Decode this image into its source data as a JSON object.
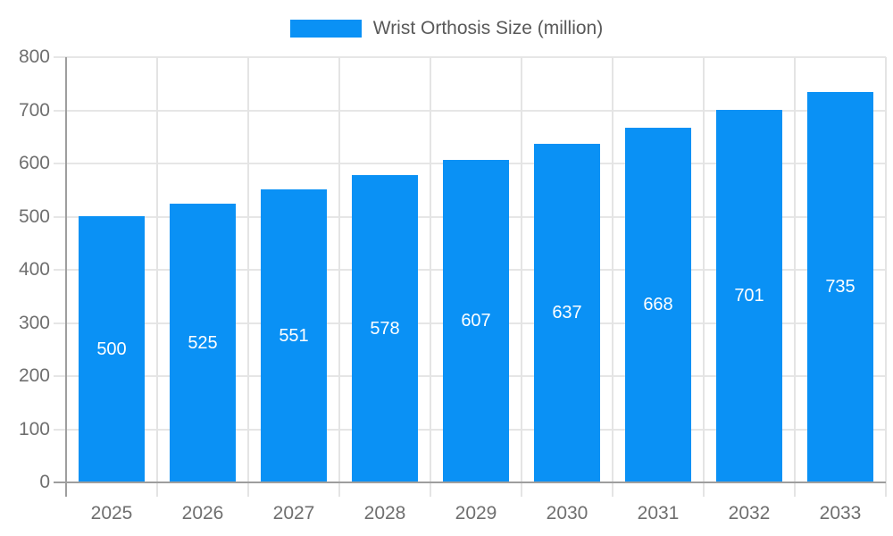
{
  "legend": {
    "label": "Wrist Orthosis Size (million)"
  },
  "chart_data": {
    "type": "bar",
    "title": "Wrist Orthosis Size (million)",
    "series": [
      {
        "name": "Wrist Orthosis Size (million)",
        "values": [
          500,
          525,
          551,
          578,
          607,
          637,
          668,
          701,
          735
        ]
      }
    ],
    "categories": [
      "2025",
      "2026",
      "2027",
      "2028",
      "2029",
      "2030",
      "2031",
      "2032",
      "2033"
    ],
    "value_labels": [
      "500",
      "525",
      "551",
      "578",
      "607",
      "637",
      "668",
      "701",
      "735"
    ],
    "xlabel": "",
    "ylabel": "",
    "ylim": [
      0,
      800
    ],
    "ytick_step": 100,
    "ytick_labels": [
      "0",
      "100",
      "200",
      "300",
      "400",
      "500",
      "600",
      "700",
      "800"
    ],
    "grid": true,
    "legend_position": "top-center",
    "bar_color": "#0a91f5",
    "value_label_color": "#ffffff",
    "axis_color": "#9e9e9e",
    "gridline_color": "#e6e6e6",
    "tick_label_color": "#6f6f6f"
  }
}
